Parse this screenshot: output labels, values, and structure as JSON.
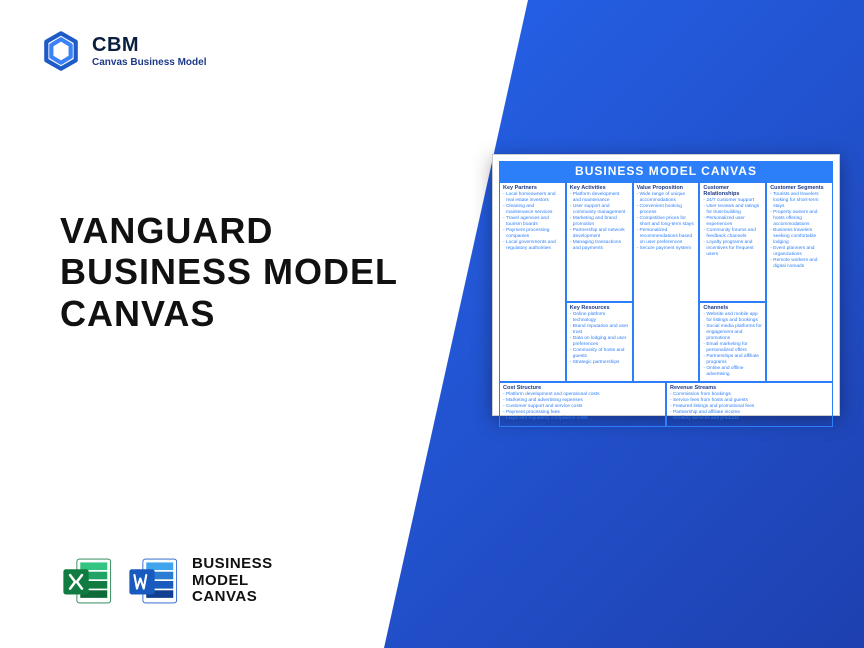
{
  "logo": {
    "title": "CBM",
    "subtitle": "Canvas Business Model"
  },
  "mainTitle": {
    "l1": "VANGUARD",
    "l2": "BUSINESS MODEL",
    "l3": "CANVAS"
  },
  "bottomLabel": {
    "l1": "BUSINESS",
    "l2": "MODEL",
    "l3": "CANVAS"
  },
  "colors": {
    "bgGradStart": "#2563eb",
    "bgGradEnd": "#1e40af",
    "canvasBlue": "#2d7ff9"
  },
  "preview": {
    "title": "BUSINESS MODEL CANVAS",
    "sections": {
      "keyPartners": {
        "title": "Key Partners",
        "items": [
          "Local homeowners and real estate investors",
          "Cleaning and maintenance services",
          "Travel agencies and tourism boards",
          "Payment processing companies",
          "Local governments and regulatory authorities"
        ]
      },
      "keyActivities": {
        "title": "Key Activities",
        "items": [
          "Platform development and maintenance",
          "User support and community management",
          "Marketing and brand promotion",
          "Partnership and network development",
          "Managing transactions and payments"
        ]
      },
      "keyResources": {
        "title": "Key Resources",
        "items": [
          "Online platform technology",
          "Brand reputation and user trust",
          "Data on lodging and user preferences",
          "Community of hosts and guests",
          "Strategic partnerships"
        ]
      },
      "valueProposition": {
        "title": "Value Proposition",
        "items": [
          "Wide range of unique accommodations",
          "Convenient booking process",
          "Competitive prices for short and long-term stays",
          "Personalized recommendations based on user preferences",
          "Secure payment system"
        ]
      },
      "customerRelationships": {
        "title": "Customer Relationships",
        "items": [
          "24/7 customer support",
          "User reviews and ratings for trust-building",
          "Personalized user experiences",
          "Community forums and feedback channels",
          "Loyalty programs and incentives for frequent users"
        ]
      },
      "channels": {
        "title": "Channels",
        "items": [
          "Website and mobile app for listings and bookings",
          "Social media platforms for engagement and promotions",
          "Email marketing for personalized offers",
          "Partnerships and affiliate programs",
          "Online and offline advertising"
        ]
      },
      "customerSegments": {
        "title": "Customer Segments",
        "items": [
          "Tourists and travelers looking for short-term stays",
          "Property owners and hosts offering accommodations",
          "Business travelers seeking comfortable lodging",
          "Event planners and organizations",
          "Remote workers and digital nomads"
        ]
      },
      "costStructure": {
        "title": "Cost Structure",
        "items": [
          "Platform development and operational costs",
          "Marketing and advertising expenses",
          "Customer support and service costs",
          "Payment processing fees",
          "Legal and regulatory compliance costs"
        ]
      },
      "revenueStreams": {
        "title": "Revenue Streams",
        "items": [
          "Commission from bookings",
          "Service fees from hosts and guests",
          "Featured listings and promotional fees",
          "Partnership and affiliate income",
          "Ancillary services and products"
        ]
      }
    }
  }
}
